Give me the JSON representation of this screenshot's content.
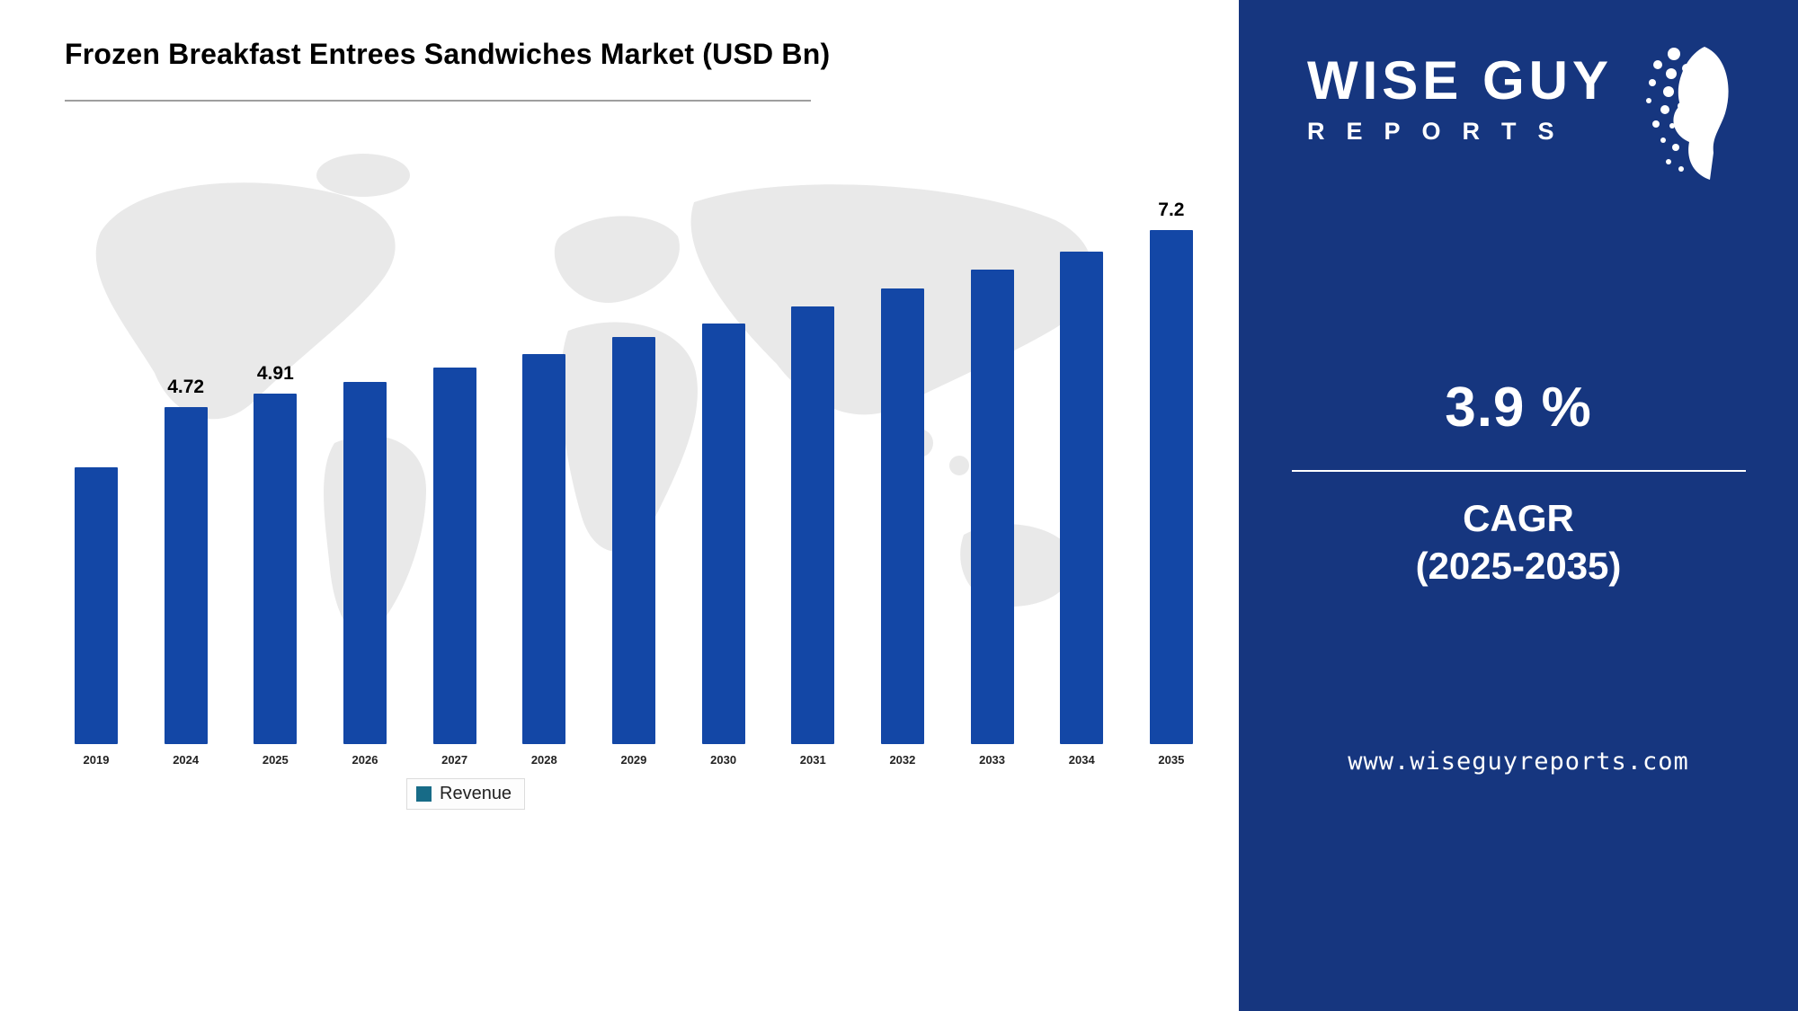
{
  "title": "Frozen Breakfast Entrees Sandwiches Market (USD Bn)",
  "chart_data": {
    "type": "bar",
    "title": "Frozen Breakfast Entrees Sandwiches Market (USD Bn)",
    "xlabel": "",
    "ylabel": "USD Bn",
    "ylim": [
      0,
      7.6
    ],
    "grid": false,
    "legend_position": "bottom",
    "bar_color": "#1347a6",
    "categories": [
      "2019",
      "2024",
      "2025",
      "2026",
      "2027",
      "2028",
      "2029",
      "2030",
      "2031",
      "2032",
      "2033",
      "2034",
      "2035"
    ],
    "values": [
      3.88,
      4.72,
      4.91,
      5.08,
      5.28,
      5.47,
      5.7,
      5.9,
      6.13,
      6.38,
      6.65,
      6.9,
      7.2
    ],
    "points": [
      {
        "year": "2019",
        "value": 3.88,
        "label": ""
      },
      {
        "year": "2024",
        "value": 4.72,
        "label": "4.72"
      },
      {
        "year": "2025",
        "value": 4.91,
        "label": "4.91"
      },
      {
        "year": "2026",
        "value": 5.08,
        "label": ""
      },
      {
        "year": "2027",
        "value": 5.28,
        "label": ""
      },
      {
        "year": "2028",
        "value": 5.47,
        "label": ""
      },
      {
        "year": "2029",
        "value": 5.7,
        "label": ""
      },
      {
        "year": "2030",
        "value": 5.9,
        "label": ""
      },
      {
        "year": "2031",
        "value": 6.13,
        "label": ""
      },
      {
        "year": "2032",
        "value": 6.38,
        "label": ""
      },
      {
        "year": "2033",
        "value": 6.65,
        "label": ""
      },
      {
        "year": "2034",
        "value": 6.9,
        "label": ""
      },
      {
        "year": "2035",
        "value": 7.2,
        "label": "7.2"
      }
    ],
    "legend": {
      "label": "Revenue",
      "color": "#176b87"
    }
  },
  "sidebar": {
    "background_color": "#16367f",
    "logo_line1": "WISE GUY",
    "logo_line2": "REPORTS",
    "cagr_value": "3.9 %",
    "cagr_label": "CAGR",
    "cagr_period": "(2025-2035)",
    "website": "www.wiseguyreports.com"
  }
}
